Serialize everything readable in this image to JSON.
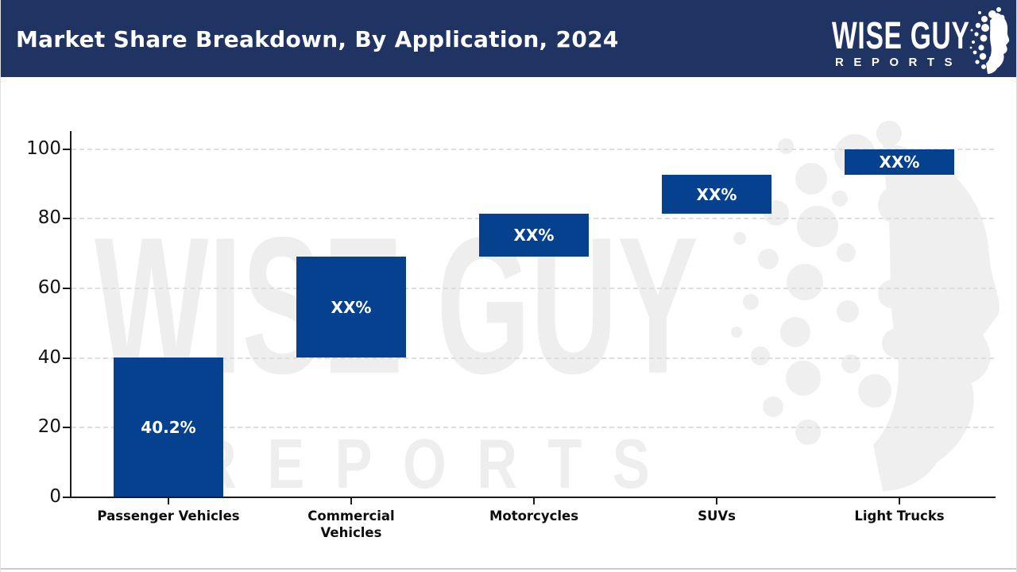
{
  "header": {
    "title": "Market Share Breakdown, By Application, 2024",
    "bg_color": "#203464",
    "logo": {
      "line1": "WISE GUY",
      "line2": "REPORTS"
    }
  },
  "watermark": {
    "line1": "WISE GUY",
    "line2": "REPORTS"
  },
  "icons": {
    "logo_head": "dotted-head-profile",
    "watermark_head": "dotted-head-profile"
  },
  "chart_data": {
    "type": "bar",
    "subtype": "waterfall",
    "title": "Market Share Breakdown, By Application, 2024",
    "categories": [
      "Passenger Vehicles",
      "Commercial\nVehicles",
      "Motorcycles",
      "SUVs",
      "Light Trucks"
    ],
    "segments": [
      {
        "start": 0,
        "end": 40.2
      },
      {
        "start": 40.2,
        "end": 69.0
      },
      {
        "start": 69.0,
        "end": 81.3
      },
      {
        "start": 81.3,
        "end": 92.5
      },
      {
        "start": 92.5,
        "end": 100.0
      }
    ],
    "bar_labels": [
      "40.2%",
      "XX%",
      "XX%",
      "XX%",
      "XX%"
    ],
    "yticks": [
      0,
      20,
      40,
      60,
      80,
      100
    ],
    "ylim": [
      0,
      105
    ],
    "xlabel": "",
    "ylabel": "",
    "bar_color": "#05418f",
    "grid": "horizontal-dashed",
    "legend": "none"
  }
}
